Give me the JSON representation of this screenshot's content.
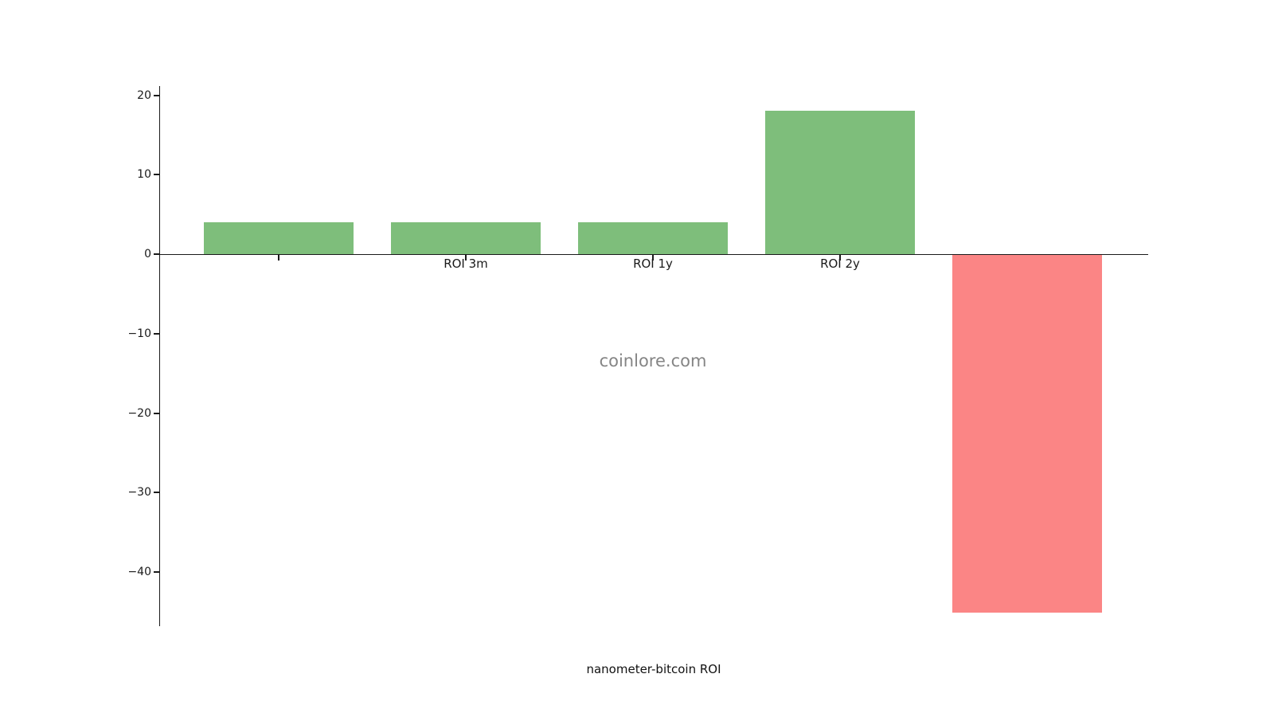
{
  "watermark": {
    "text": "coinlore.com",
    "color": "#858585"
  },
  "chart_data": {
    "type": "bar",
    "title": "nanometer-bitcoin ROI",
    "xlabel": "nanometer-bitcoin ROI",
    "ylabel": "",
    "categories": [
      "",
      "ROI 3m",
      "ROI 1y",
      "ROI 2y",
      ""
    ],
    "values": [
      4,
      4,
      4,
      18,
      -45
    ],
    "bar_colors": [
      "#7ebe7b",
      "#7ebe7b",
      "#7ebe7b",
      "#7ebe7b",
      "#fb8585"
    ],
    "positive_color": "#7ebe7b",
    "negative_color": "#fb8585",
    "y_ticks": [
      20,
      10,
      0,
      -10,
      -20,
      -30,
      -40
    ],
    "ylim": [
      -46.7,
      21.3
    ],
    "grid": false,
    "legend": "none",
    "axis_color": "#1a1a1a",
    "text_color": "#1a1a1a"
  }
}
